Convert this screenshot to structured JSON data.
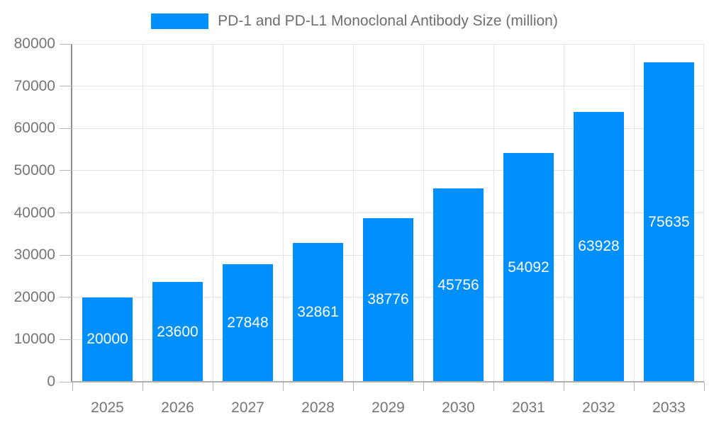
{
  "chart_data": {
    "type": "bar",
    "title": "PD-1 and PD-L1 Monoclonal Antibody Size (million)",
    "categories": [
      "2025",
      "2026",
      "2027",
      "2028",
      "2029",
      "2030",
      "2031",
      "2032",
      "2033"
    ],
    "series": [
      {
        "name": "PD-1 and PD-L1 Monoclonal Antibody Size (million)",
        "values": [
          20000,
          23600,
          27848,
          32861,
          38776,
          45756,
          54092,
          63928,
          75635
        ]
      }
    ],
    "values": [
      20000,
      23600,
      27848,
      32861,
      38776,
      45756,
      54092,
      63928,
      75635
    ],
    "data_labels": [
      "20000",
      "23600",
      "27848",
      "32861",
      "38776",
      "45756",
      "54092",
      "63928",
      "75635"
    ],
    "xlabel": "",
    "ylabel": "",
    "ylim": [
      0,
      80000
    ],
    "ytick_step": 10000,
    "ytick_labels": [
      "0",
      "10000",
      "20000",
      "30000",
      "40000",
      "50000",
      "60000",
      "70000",
      "80000"
    ],
    "grid": true,
    "legend_position": "top-center",
    "colors": {
      "bar": "#008FFB",
      "bar_label": "#FFFFFF",
      "axis_label": "#757575",
      "legend_label": "#6E6E6E",
      "gridline": "#E3E3E3",
      "axis_line": "#8C8C8C",
      "baseline": "#B0B0B0",
      "tick": "#B5B5B5",
      "background": "#FFFFFF"
    }
  }
}
